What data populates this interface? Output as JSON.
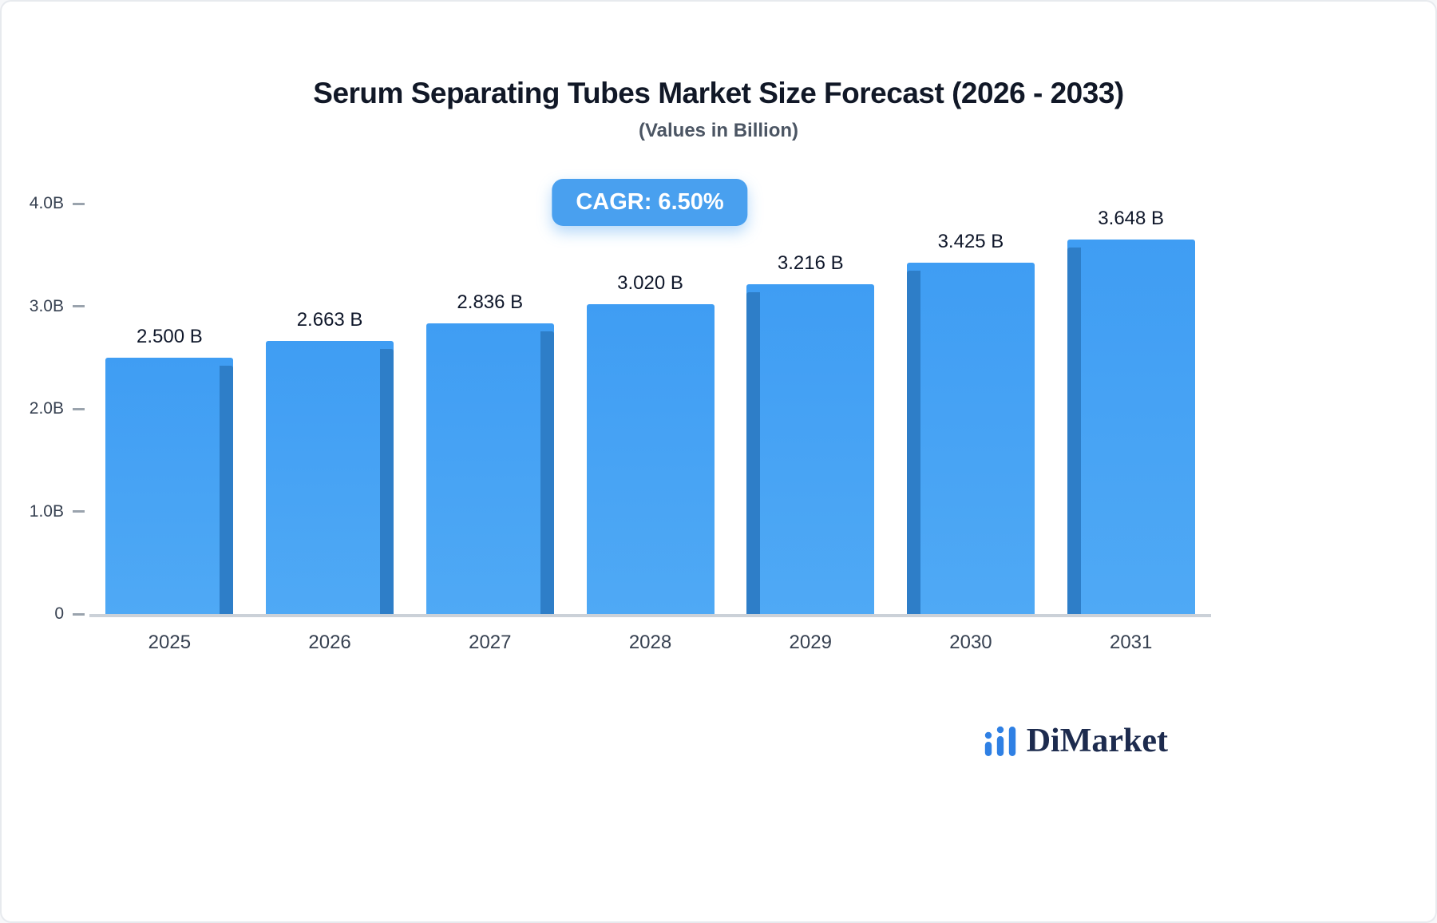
{
  "chart_data": {
    "type": "bar",
    "title": "Serum Separating Tubes Market Size Forecast (2026 - 2033)",
    "subtitle": "(Values in Billion)",
    "annotation": "CAGR: 6.50%",
    "categories": [
      "2025",
      "2026",
      "2027",
      "2028",
      "2029",
      "2030",
      "2031"
    ],
    "values": [
      2.5,
      2.663,
      2.836,
      3.02,
      3.216,
      3.425,
      3.648
    ],
    "value_labels": [
      "2.500 B",
      "2.663 B",
      "2.836 B",
      "3.020 B",
      "3.216 B",
      "3.425 B",
      "3.648 B"
    ],
    "xlabel": "",
    "ylabel": "",
    "ylim": [
      0,
      4.0
    ],
    "ytick_labels": [
      "4.0B",
      "3.0B",
      "2.0B",
      "1.0B",
      "0"
    ],
    "grid": false,
    "legend": false,
    "bar_3d_sides": [
      "right",
      "right",
      "right",
      "none",
      "left",
      "left",
      "left"
    ],
    "colors": {
      "bar_top": "#3f9df3",
      "bar_bottom": "#4fa9f5",
      "bar_side_face": "#2e7ec8",
      "badge_bg": "#49a0ef",
      "badge_text": "#ffffff",
      "axis_line": "#cbd1d8"
    }
  },
  "branding": {
    "logo_text": "DiMarket",
    "logo_icon": "bar-chart-icon",
    "logo_color": "#2f80e4"
  }
}
